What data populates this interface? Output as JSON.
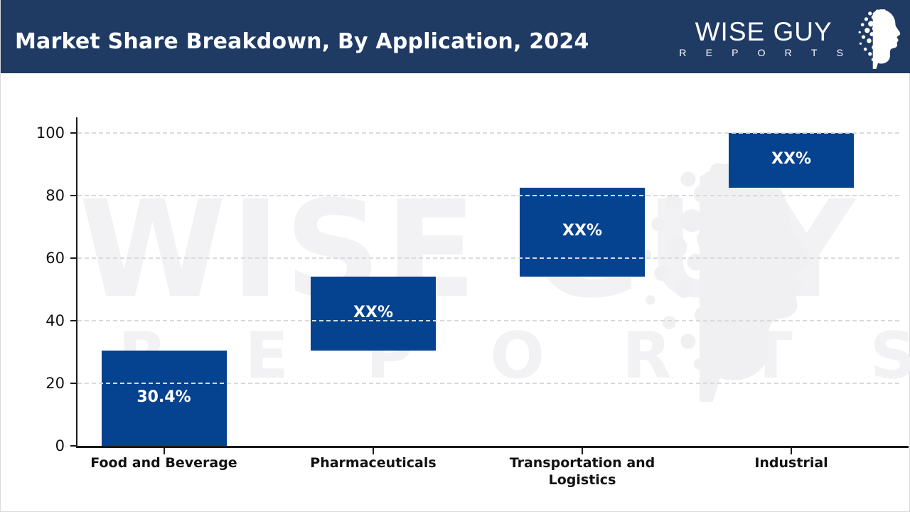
{
  "header": {
    "title": "Market Share Breakdown, By Application, 2024",
    "bg_color": "#1f3a63",
    "logo": {
      "line1": "WISE GUY",
      "line2": "REPORTS"
    }
  },
  "watermark": {
    "line1": "WISE GUY",
    "line2": "REPORTS"
  },
  "chart_data": {
    "type": "bar",
    "subtype": "waterfall",
    "title": "Market Share Breakdown, By Application, 2024",
    "categories": [
      "Food and Beverage",
      "Pharmaceuticals",
      "Transportation and Logistics",
      "Industrial"
    ],
    "segments": [
      {
        "category": "Food and Beverage",
        "start": 0,
        "end": 30.4,
        "value_label": "30.4%"
      },
      {
        "category": "Pharmaceuticals",
        "start": 30.4,
        "end": 54.2,
        "value_label": "XX%"
      },
      {
        "category": "Transportation and Logistics",
        "start": 54.2,
        "end": 82.6,
        "value_label": "XX%"
      },
      {
        "category": "Industrial",
        "start": 82.6,
        "end": 100,
        "value_label": "XX%"
      }
    ],
    "yticks": [
      0,
      20,
      40,
      60,
      80,
      100
    ],
    "ylim": [
      0,
      105
    ],
    "bar_color": "#05428f",
    "grid": "horizontal-dashed",
    "grid_color": "#d8dadc",
    "xlabel": "",
    "ylabel": ""
  }
}
